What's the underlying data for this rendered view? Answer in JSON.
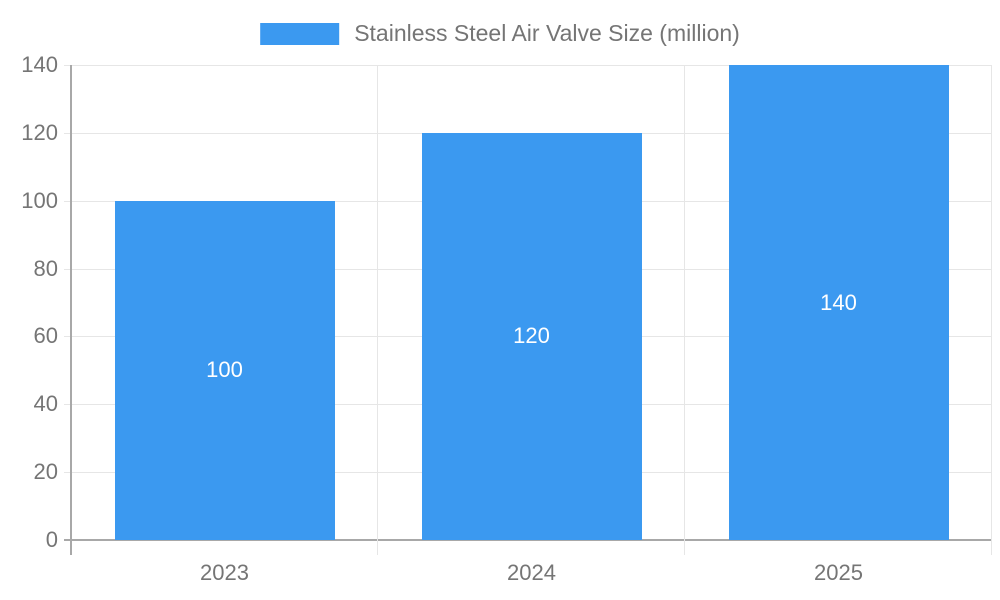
{
  "chart_data": {
    "type": "bar",
    "title": "Stainless Steel Air Valve Size (million)",
    "categories": [
      "2023",
      "2024",
      "2025"
    ],
    "values": [
      100,
      120,
      140
    ],
    "yticks": [
      0,
      20,
      40,
      60,
      80,
      100,
      120,
      140
    ],
    "ylim": [
      0,
      140
    ],
    "xlabel": "",
    "ylabel": "",
    "legend_position": "top-center",
    "grid": true,
    "colors": {
      "bar": "#3b99f0",
      "bar_value_label": "#ffffff",
      "axis_text": "#757575",
      "legend_text": "#757575",
      "gridline": "#e6e6e6",
      "axis_line": "#a8a8a8",
      "background": "#ffffff"
    }
  }
}
